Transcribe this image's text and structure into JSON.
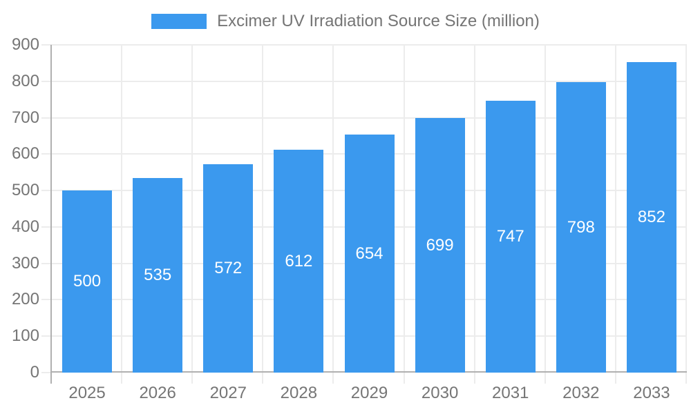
{
  "legend": {
    "label": "Excimer UV Irradiation Source Size (million)"
  },
  "chart_data": {
    "type": "bar",
    "title": "Excimer UV Irradiation Source Size (million)",
    "categories": [
      "2025",
      "2026",
      "2027",
      "2028",
      "2029",
      "2030",
      "2031",
      "2032",
      "2033"
    ],
    "values": [
      500,
      535,
      572,
      612,
      654,
      699,
      747,
      798,
      852
    ],
    "bar_labels": [
      "500",
      "535",
      "572",
      "612",
      "654",
      "699",
      "747",
      "798",
      "852"
    ],
    "xlabel": "",
    "ylabel": "",
    "ylim": [
      0,
      900
    ],
    "yticks": [
      0,
      100,
      200,
      300,
      400,
      500,
      600,
      700,
      800,
      900
    ],
    "grid": true,
    "legend_position": "top-center",
    "colors": {
      "bar": "#3b99ee",
      "bar_label_text": "#ffffff",
      "axis_line": "#b0b0b0",
      "grid_line": "#ececec",
      "tick_text": "#757575",
      "legend_text": "#757575",
      "background": "#ffffff"
    }
  }
}
